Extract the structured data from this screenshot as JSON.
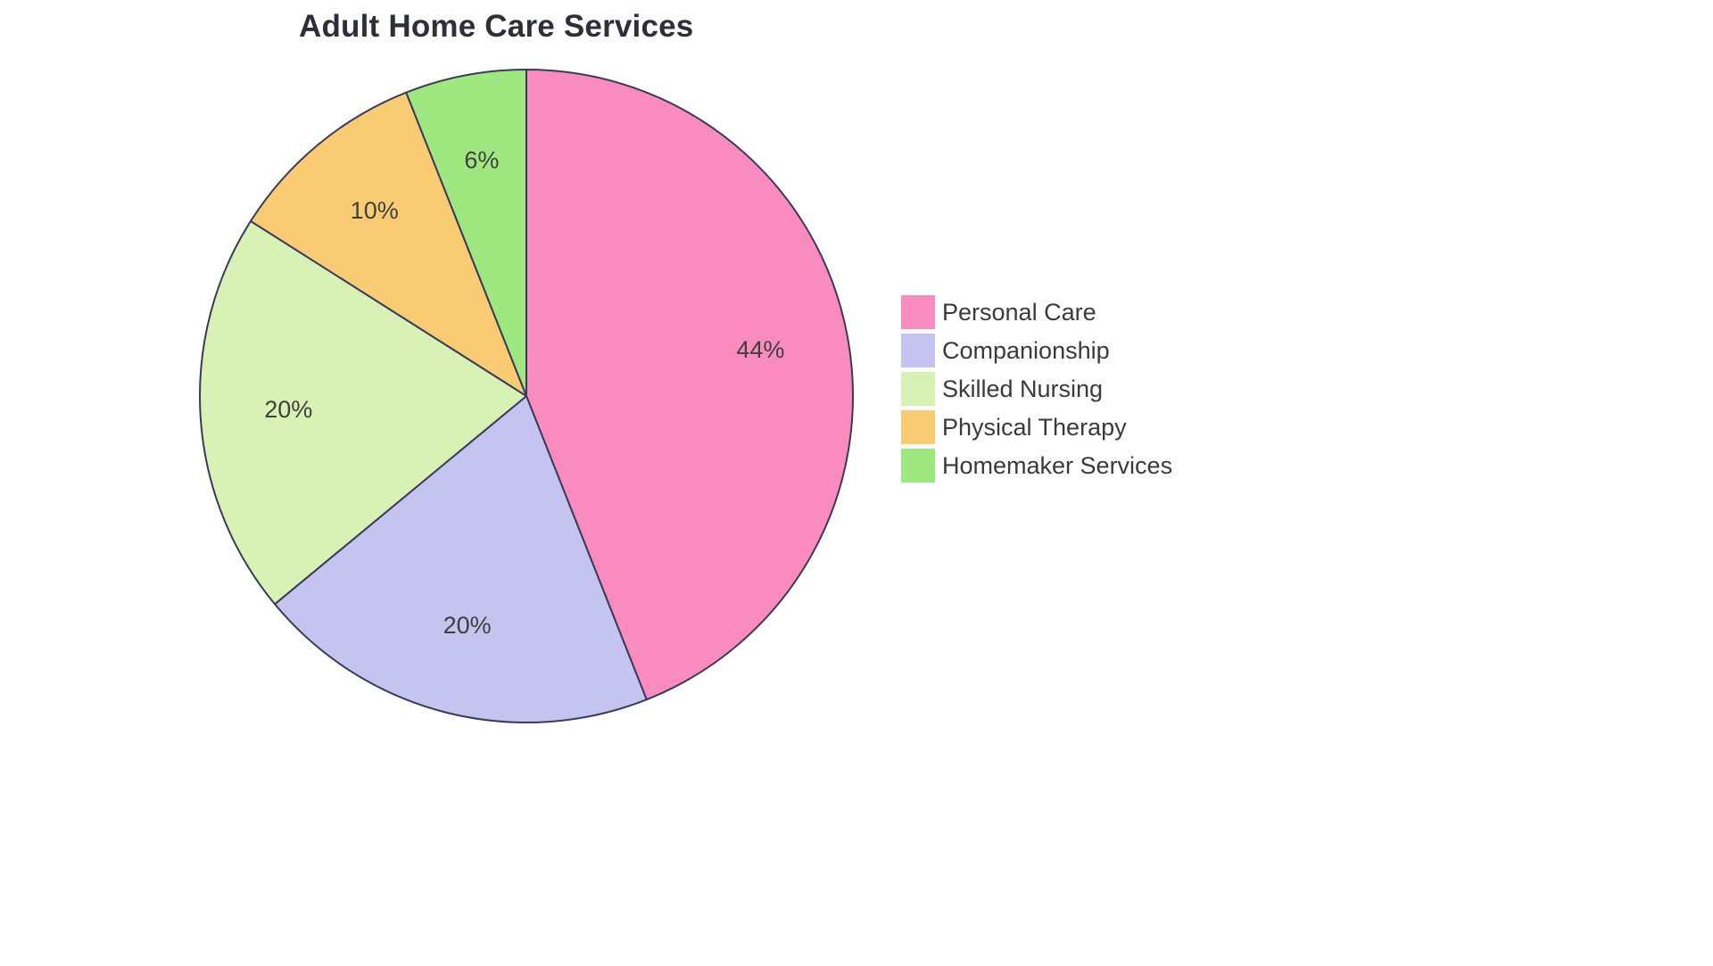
{
  "chart_data": {
    "type": "pie",
    "title": "Adult Home Care Services",
    "labels": [
      "Personal Care",
      "Companionship",
      "Skilled Nursing",
      "Physical Therapy",
      "Homemaker Services"
    ],
    "values": [
      44,
      20,
      20,
      10,
      6
    ],
    "slice_labels": [
      "44%",
      "20%",
      "20%",
      "10%",
      "6%"
    ],
    "colors": [
      "#F98BBE",
      "#C5C3F0",
      "#D8F1B4",
      "#F9CC73",
      "#9FE87F"
    ],
    "stroke_color": "#3A3A5A",
    "start_angle_deg": 0,
    "direction": "clockwise",
    "legend_position": "right",
    "background": "#FFFFFF"
  }
}
